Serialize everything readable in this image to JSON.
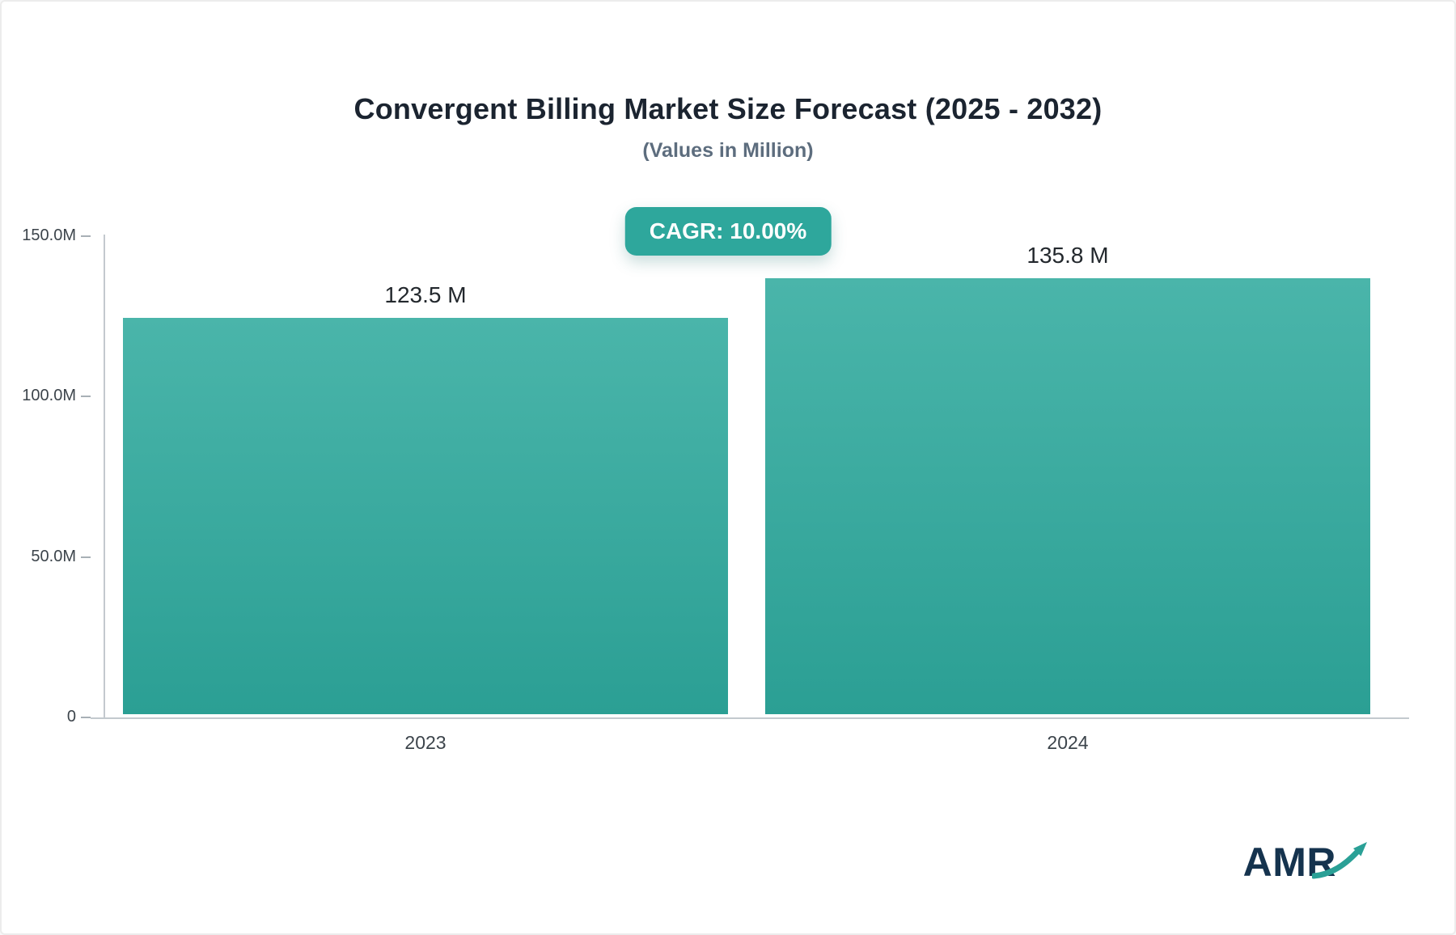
{
  "chart_data": {
    "type": "bar",
    "title": "Convergent Billing Market Size Forecast (2025 - 2032)",
    "subtitle": "(Values in Million)",
    "badge": "CAGR: 10.00%",
    "categories": [
      "2023",
      "2024"
    ],
    "values": [
      123.5,
      135.8
    ],
    "value_labels": [
      "123.5 M",
      "135.8 M"
    ],
    "ylabel": "",
    "xlabel": "",
    "ylim": [
      0,
      150
    ],
    "ytick_labels": [
      "150.0M",
      "100.0M",
      "50.0M",
      "0"
    ],
    "grid": false,
    "legend": "none",
    "colors": {
      "bar_top": "#4ab5aa",
      "bar_bottom": "#2b9f94",
      "badge": "#2ea79c",
      "logo_text": "#15334e",
      "logo_arrow": "#2aa096"
    }
  },
  "logo": {
    "text": "AMR"
  }
}
